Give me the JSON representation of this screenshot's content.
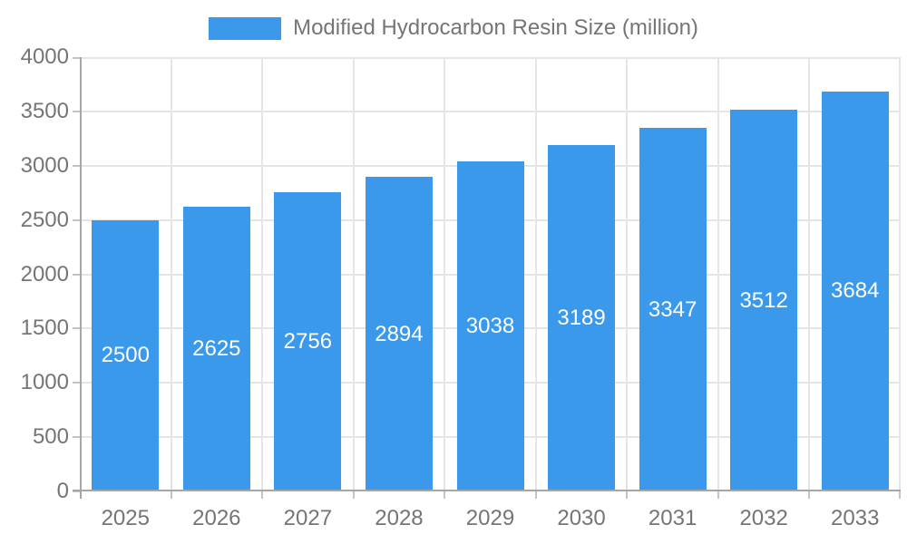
{
  "legend": {
    "label": "Modified Hydrocarbon Resin Size (million)"
  },
  "colors": {
    "bar": "#3b99ec",
    "grid": "#e5e5e5",
    "axis": "#a6a6a6",
    "tick": "#c4c4c4",
    "tick_label": "#757575",
    "legend_text": "#757575",
    "value_label": "#ffffff",
    "background": "#ffffff"
  },
  "chart_data": {
    "type": "bar",
    "title": "Modified Hydrocarbon Resin Size (million)",
    "categories": [
      "2025",
      "2026",
      "2027",
      "2028",
      "2029",
      "2030",
      "2031",
      "2032",
      "2033"
    ],
    "values": [
      2500,
      2625,
      2756,
      2894,
      3038,
      3189,
      3347,
      3512,
      3684
    ],
    "xlabel": "",
    "ylabel": "",
    "ylim": [
      0,
      4000
    ],
    "yticks": [
      0,
      500,
      1000,
      1500,
      2000,
      2500,
      3000,
      3500,
      4000
    ],
    "grid": true,
    "legend_position": "top",
    "value_labels": "inside-center"
  }
}
